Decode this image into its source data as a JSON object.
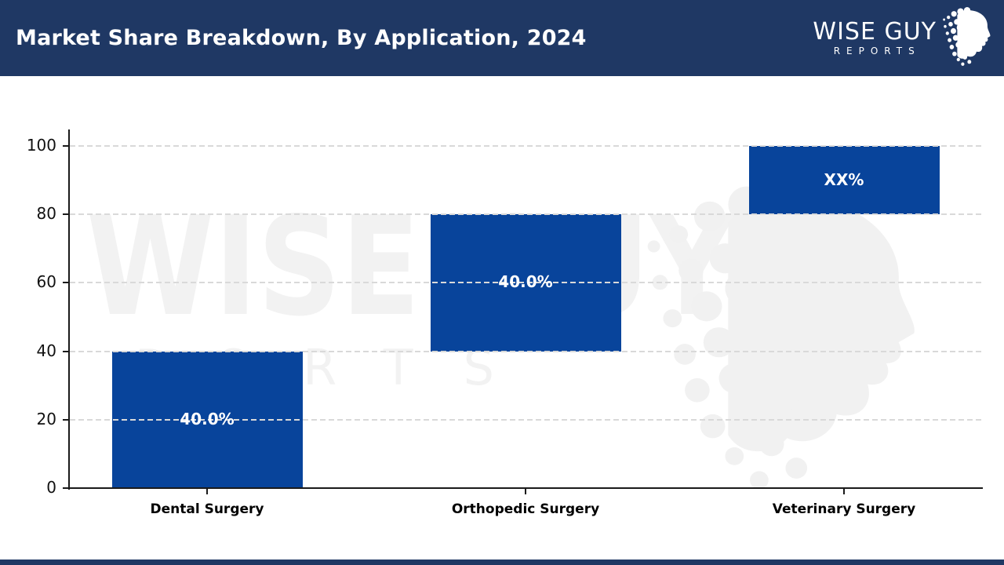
{
  "header": {
    "title": "Market Share Breakdown, By Application, 2024",
    "logo": {
      "brand": "WISE GUY",
      "brand_sub": "REPORTS"
    }
  },
  "watermark": {
    "line1": "WISE GUY",
    "line2": "PORTS"
  },
  "chart_data": {
    "type": "bar",
    "subtype": "waterfall",
    "title": "Market Share Breakdown, By Application, 2024",
    "categories": [
      "Dental Surgery",
      "Orthopedic Surgery",
      "Veterinary Surgery"
    ],
    "bars": [
      {
        "category": "Dental Surgery",
        "start": 0,
        "end": 40,
        "label": "40.0%"
      },
      {
        "category": "Orthopedic Surgery",
        "start": 40,
        "end": 80,
        "label": "40.0%"
      },
      {
        "category": "Veterinary Surgery",
        "start": 80,
        "end": 100,
        "label": "XX%"
      }
    ],
    "xlabel": "",
    "ylabel": "",
    "ylim": [
      0,
      100
    ],
    "yticks": [
      0,
      20,
      40,
      60,
      80,
      100
    ],
    "grid": "horizontal-dashed",
    "legend": "none",
    "bar_color": "#08449B",
    "bar_label_color": "#ffffff"
  },
  "colors": {
    "header_bg": "#1F3864",
    "footer_bg": "#1F3864",
    "bar": "#08449B",
    "grid": "#d9d9d9",
    "axis": "#1a1a1a",
    "watermark": "#f2f2f2",
    "chart_bg": "#ffffff"
  }
}
